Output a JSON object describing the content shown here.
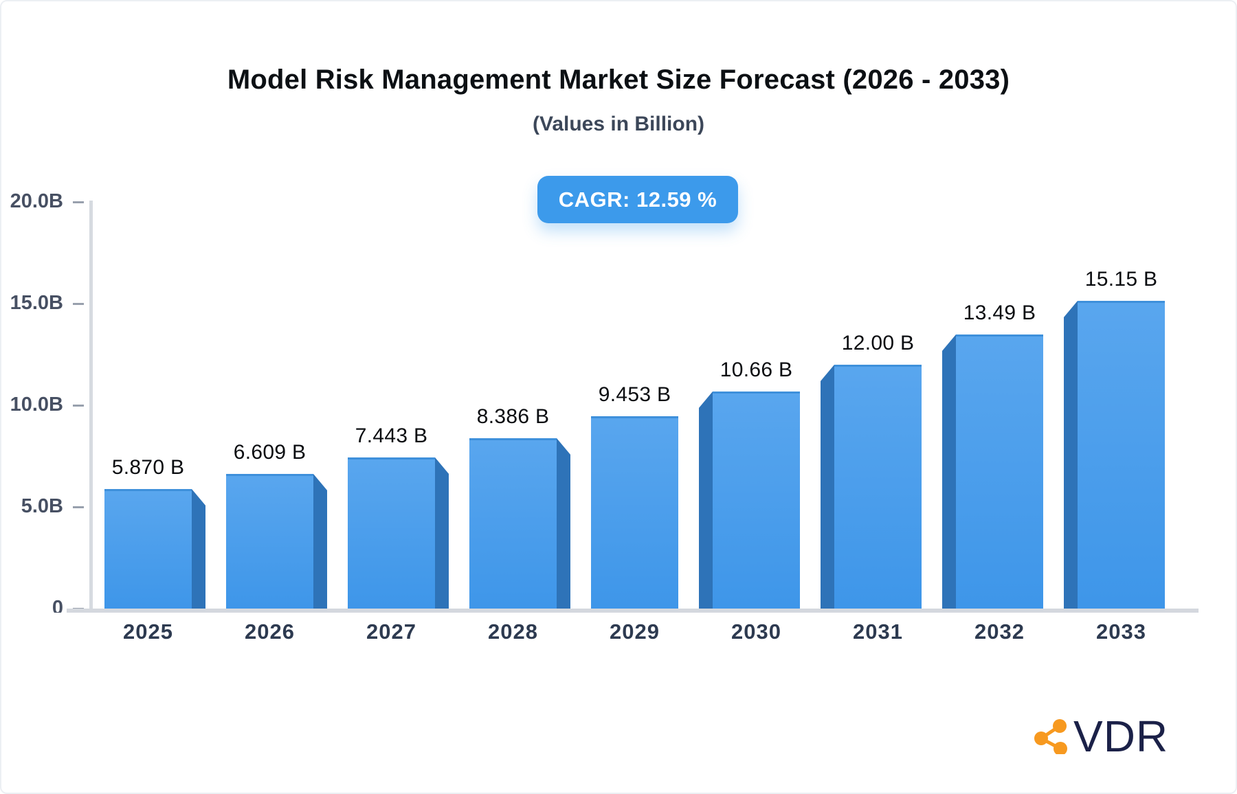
{
  "header": {
    "title": "Model Risk Management Market Size Forecast (2026 - 2033)",
    "subtitle": "(Values in Billion)",
    "cagr_badge": "CAGR: 12.59 %"
  },
  "chart_data": {
    "type": "bar",
    "title": "Model Risk Management Market Size Forecast (2026 - 2033)",
    "subtitle": "(Values in Billion)",
    "cagr": "12.59 %",
    "categories": [
      "2025",
      "2026",
      "2027",
      "2028",
      "2029",
      "2030",
      "2031",
      "2032",
      "2033"
    ],
    "values": [
      5.87,
      6.609,
      7.443,
      8.386,
      9.453,
      10.66,
      12.0,
      13.49,
      15.15
    ],
    "value_labels": [
      "5.870 B",
      "6.609 B",
      "7.443 B",
      "8.386 B",
      "9.453 B",
      "10.66 B",
      "12.00 B",
      "13.49 B",
      "15.15 B"
    ],
    "y_ticks": [
      {
        "label": "20.0B",
        "value": 20
      },
      {
        "label": "15.0B",
        "value": 15
      },
      {
        "label": "10.0B",
        "value": 10
      },
      {
        "label": "5.0B",
        "value": 5
      },
      {
        "label": "0",
        "value": 0
      }
    ],
    "ylim": [
      0,
      20
    ],
    "grid": false,
    "legend": false,
    "bar_style": {
      "front_top": "#59A6EE",
      "front_bottom": "#3E96E9",
      "top_edge": "#3E90DB",
      "side": "#2E73B8"
    },
    "badge_color": "#3C9AEB",
    "axis_color": "#D6DAE0"
  },
  "branding": {
    "logo_text": "VDR",
    "logo_icon": "share-network-icon",
    "icon_color": "#F7991F",
    "text_color": "#1B2148"
  }
}
